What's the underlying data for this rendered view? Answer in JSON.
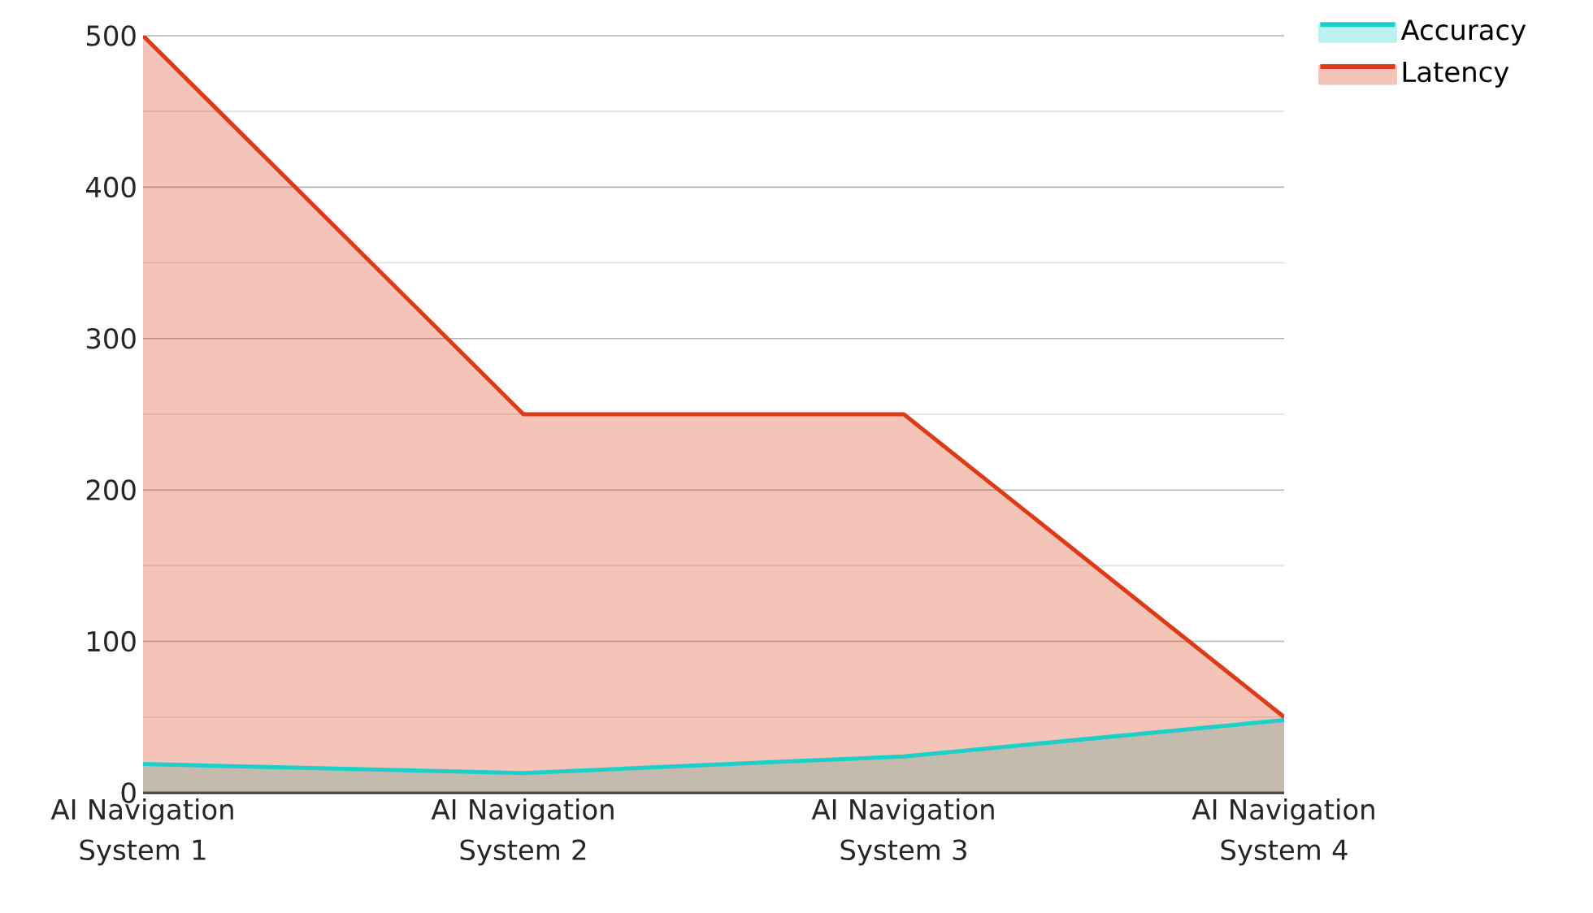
{
  "chart_data": {
    "type": "area",
    "categories": [
      "AI Navigation System 1",
      "AI Navigation System 2",
      "AI Navigation System 3",
      "AI Navigation System 4"
    ],
    "series": [
      {
        "name": "Accuracy",
        "color": "#1ccfc9",
        "values": [
          19,
          13,
          24,
          48
        ]
      },
      {
        "name": "Latency",
        "color": "#dd3b17",
        "values": [
          500,
          250,
          250,
          50
        ]
      }
    ],
    "ylim": [
      0,
      500
    ],
    "yticks": [
      0,
      {
        "value": 50,
        "label": null
      },
      100,
      {
        "value": 150,
        "label": null
      },
      200,
      {
        "value": 250,
        "label": null
      },
      300,
      {
        "value": 350,
        "label": null
      },
      400,
      {
        "value": 450,
        "label": null
      },
      500
    ],
    "grid": "y",
    "legend": "top right"
  }
}
